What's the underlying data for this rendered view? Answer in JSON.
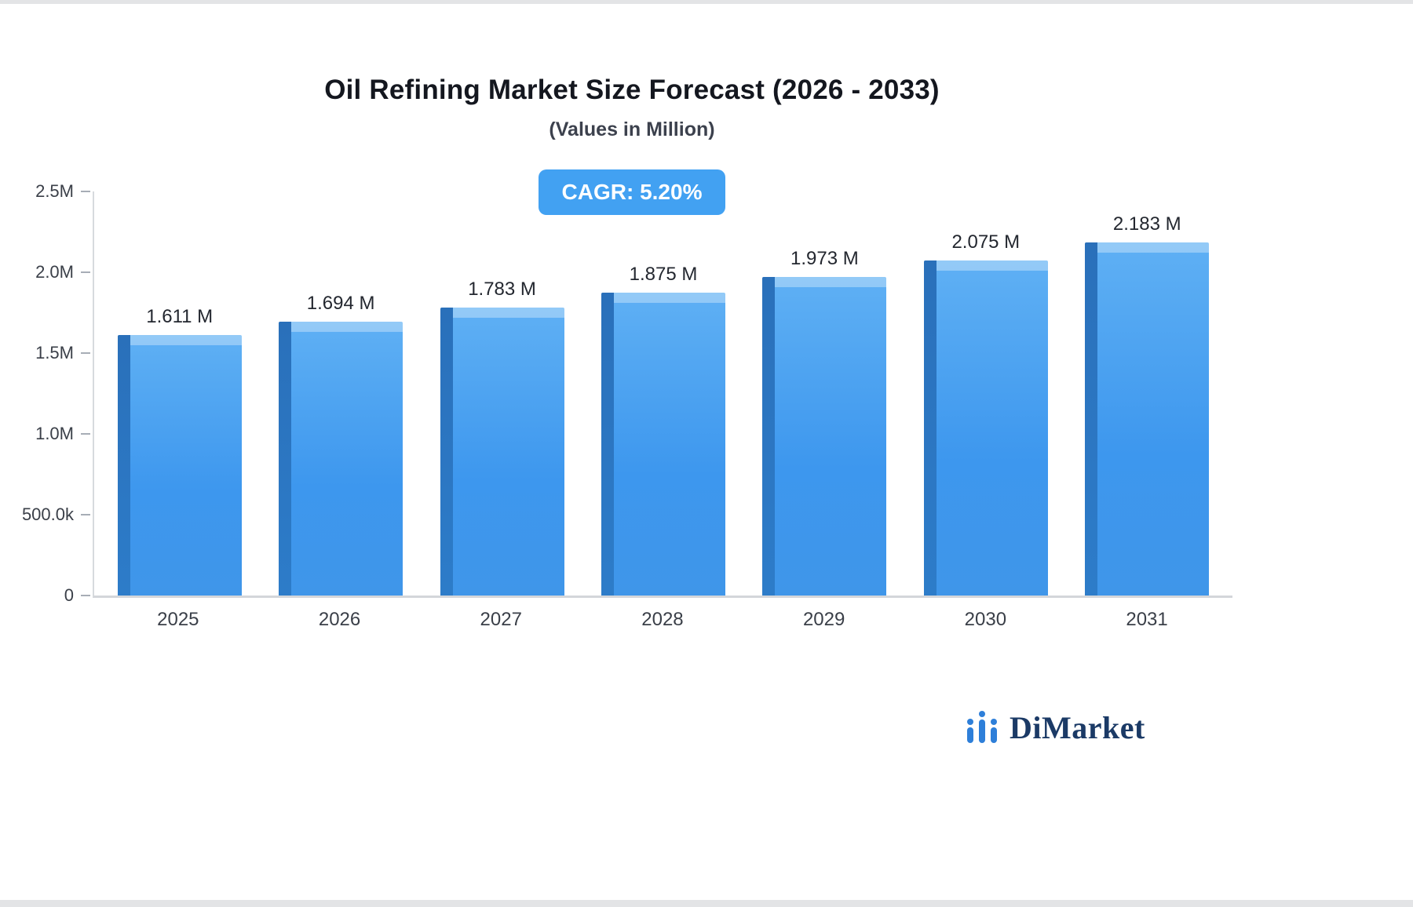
{
  "header": {
    "title": "Oil Refining Market Size Forecast (2026 - 2033)",
    "subtitle": "(Values in Million)"
  },
  "badge": {
    "label": "CAGR: 5.20%",
    "color": "#42a1f2"
  },
  "chart_data": {
    "type": "bar",
    "title": "Oil Refining Market Size Forecast (2026 - 2033)",
    "subtitle": "(Values in Million)",
    "categories": [
      "2025",
      "2026",
      "2027",
      "2028",
      "2029",
      "2030",
      "2031"
    ],
    "values": [
      1611000,
      1694000,
      1783000,
      1875000,
      1973000,
      2075000,
      2183000
    ],
    "value_labels": [
      "1.611 M",
      "1.694 M",
      "1.783 M",
      "1.875 M",
      "1.973 M",
      "2.075 M",
      "2.183 M"
    ],
    "yticks": [
      {
        "label": "2.5M",
        "value": 2500000
      },
      {
        "label": "2.0M",
        "value": 2000000
      },
      {
        "label": "1.5M",
        "value": 1500000
      },
      {
        "label": "1.0M",
        "value": 1000000
      },
      {
        "label": "500.0k",
        "value": 500000
      },
      {
        "label": "0",
        "value": 0
      }
    ],
    "ylim": [
      0,
      2500000
    ],
    "xlabel": "",
    "ylabel": "",
    "bar_color": "#3f9bf0",
    "bar_side_color": "#2d7cc9",
    "grid": false,
    "legend": false
  },
  "logo": {
    "text": "DiMarket",
    "icon": "bar-chart-icon",
    "icon_color": "#2e7fd9",
    "text_color": "#1b3a66"
  }
}
